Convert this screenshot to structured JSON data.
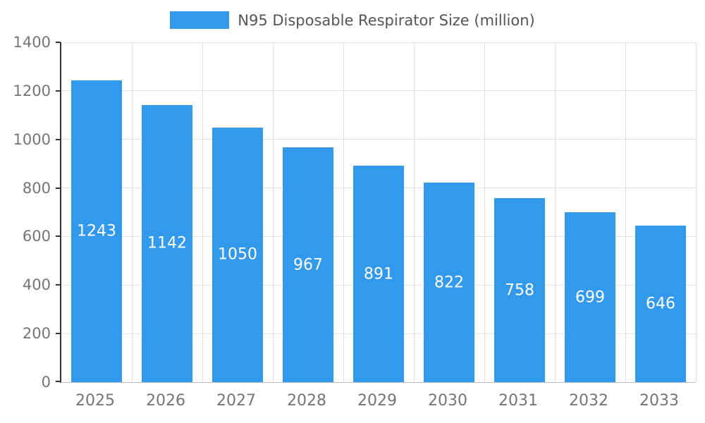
{
  "chart_data": {
    "type": "bar",
    "title": "N95 Disposable Respirator Size (million)",
    "categories": [
      "2025",
      "2026",
      "2027",
      "2028",
      "2029",
      "2030",
      "2031",
      "2032",
      "2033"
    ],
    "values": [
      1243,
      1142,
      1050,
      967,
      891,
      822,
      758,
      699,
      646
    ],
    "xlabel": "",
    "ylabel": "",
    "ylim": [
      0,
      1400
    ],
    "yticks": [
      0,
      200,
      400,
      600,
      800,
      1000,
      1200,
      1400
    ],
    "grid": true,
    "legend_position": "top",
    "bar_color": "#3399ec",
    "bar_label_color": "#ffffff",
    "axis_text_color": "#757575",
    "grid_color": "#e0e0e0",
    "axis_line_color": "#333333"
  }
}
